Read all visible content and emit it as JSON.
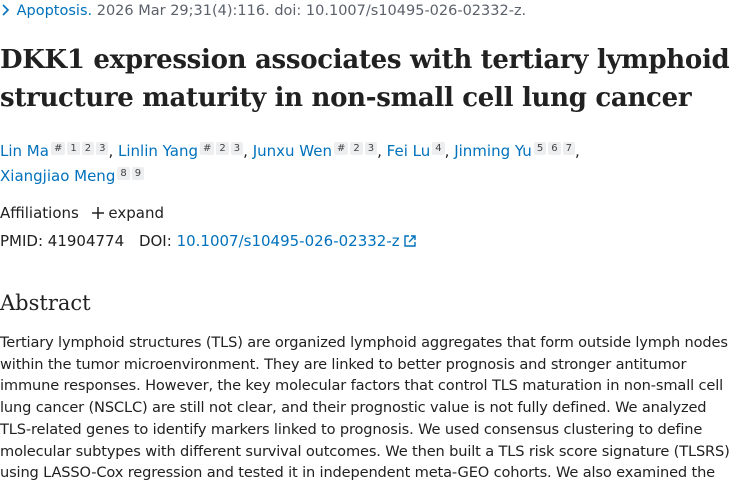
{
  "citation": {
    "journal": "Apoptosis.",
    "details": "2026 Mar 29;31(4):116. doi: 10.1007/s10495-026-02332-z."
  },
  "title": [
    "DKK1 expression associates with tertiary lymphoid",
    "structure maturity in non-small cell lung cancer"
  ],
  "authors": [
    {
      "name": "Lin Ma",
      "sups": [
        "#",
        "1",
        "2",
        "3"
      ]
    },
    {
      "name": "Linlin Yang",
      "sups": [
        "#",
        "2",
        "3"
      ]
    },
    {
      "name": "Junxu Wen",
      "sups": [
        "#",
        "2",
        "3"
      ]
    },
    {
      "name": "Fei Lu",
      "sups": [
        "4"
      ]
    },
    {
      "name": "Jinming Yu",
      "sups": [
        "5",
        "6",
        "7"
      ]
    },
    {
      "name": "Xiangjiao Meng",
      "sups": [
        "8",
        "9"
      ]
    }
  ],
  "separator": ",",
  "affiliations": {
    "label": "Affiliations",
    "action": "expand"
  },
  "ids": {
    "pmid_label": "PMID:",
    "pmid": "41904774",
    "doi_label": "DOI:",
    "doi": "10.1007/s10495-026-02332-z"
  },
  "abstract": {
    "heading": "Abstract",
    "lines": [
      "Tertiary lymphoid structures (TLS) are organized lymphoid aggregates that form outside lymph nodes",
      "within the tumor microenvironment. They are linked to better prognosis and stronger antitumor",
      "immune responses. However, the key molecular factors that control TLS maturation in non-small cell",
      "lung cancer (NSCLC) are still not clear, and their prognostic value is not fully defined. We analyzed",
      "TLS-related genes to identify markers linked to prognosis. We used consensus clustering to define",
      "molecular subtypes with different survival outcomes. We then built a TLS risk score signature (TLSRS)",
      "using LASSO-Cox regression and tested it in independent meta-GEO cohorts. We also examined the"
    ]
  }
}
